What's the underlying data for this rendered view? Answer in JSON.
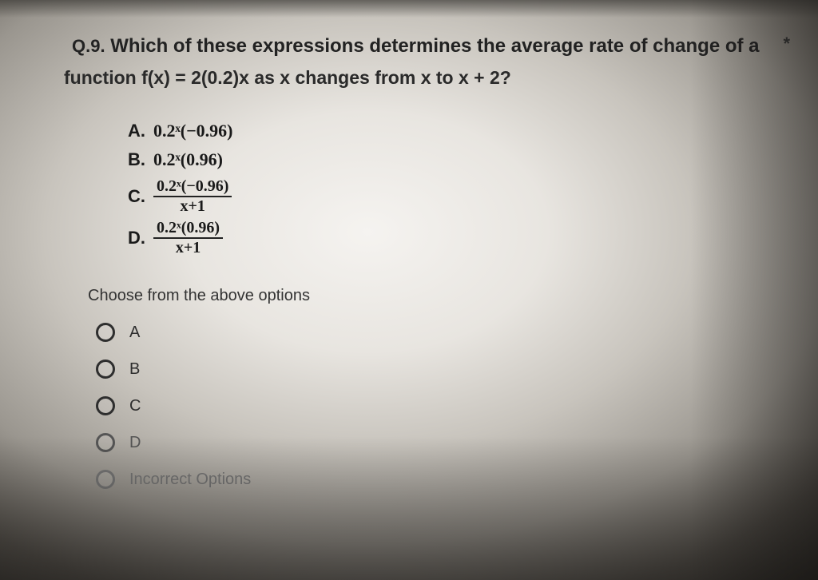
{
  "question": {
    "number": "Q.9.",
    "line1": "Which of these expressions determines the average rate of change of a",
    "line2": "function f(x) = 2(0.2)x as x changes from x to x + 2?",
    "star": "*"
  },
  "answers": {
    "A": {
      "letter": "A.",
      "expr": "0.2ˣ(−0.96)"
    },
    "B": {
      "letter": "B.",
      "expr": "0.2ˣ(0.96)"
    },
    "C": {
      "letter": "C.",
      "num": "0.2ˣ(−0.96)",
      "den": "x+1"
    },
    "D": {
      "letter": "D.",
      "num": "0.2ˣ(0.96)",
      "den": "x+1"
    }
  },
  "choose_label": "Choose from the above options",
  "radios": {
    "A": "A",
    "B": "B",
    "C": "C",
    "D": "D",
    "inc": "Incorrect Options"
  },
  "colors": {
    "text": "#1a1a1a",
    "paper_light": "#f5f3f0",
    "paper_dark": "#2a2824"
  }
}
